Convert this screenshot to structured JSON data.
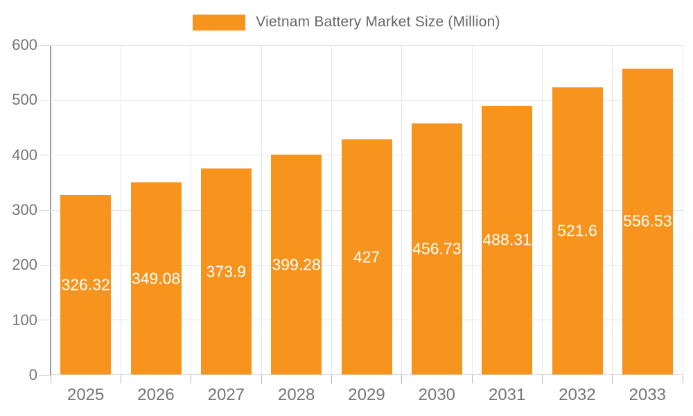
{
  "legend": {
    "label": "Vietnam Battery Market Size (Million)",
    "swatch_color": "#F7941E"
  },
  "chart_data": {
    "type": "bar",
    "title": "Vietnam Battery Market Size (Million)",
    "xlabel": "",
    "ylabel": "",
    "categories": [
      "2025",
      "2026",
      "2027",
      "2028",
      "2029",
      "2030",
      "2031",
      "2032",
      "2033"
    ],
    "values": [
      326.32,
      349.08,
      373.9,
      399.28,
      427,
      456.73,
      488.31,
      521.6,
      556.53
    ],
    "value_labels": [
      "326.32",
      "349.08",
      "373.9",
      "399.28",
      "427",
      "456.73",
      "488.31",
      "521.6",
      "556.53"
    ],
    "ylim": [
      0,
      600
    ],
    "yticks": [
      0,
      100,
      200,
      300,
      400,
      500,
      600
    ],
    "grid": true,
    "legend_position": "top-center",
    "value_label_position": "inside-middle",
    "bar_color": "#F7941E",
    "value_label_color": "#FFFFFF",
    "axis_text_color": "#757575"
  }
}
